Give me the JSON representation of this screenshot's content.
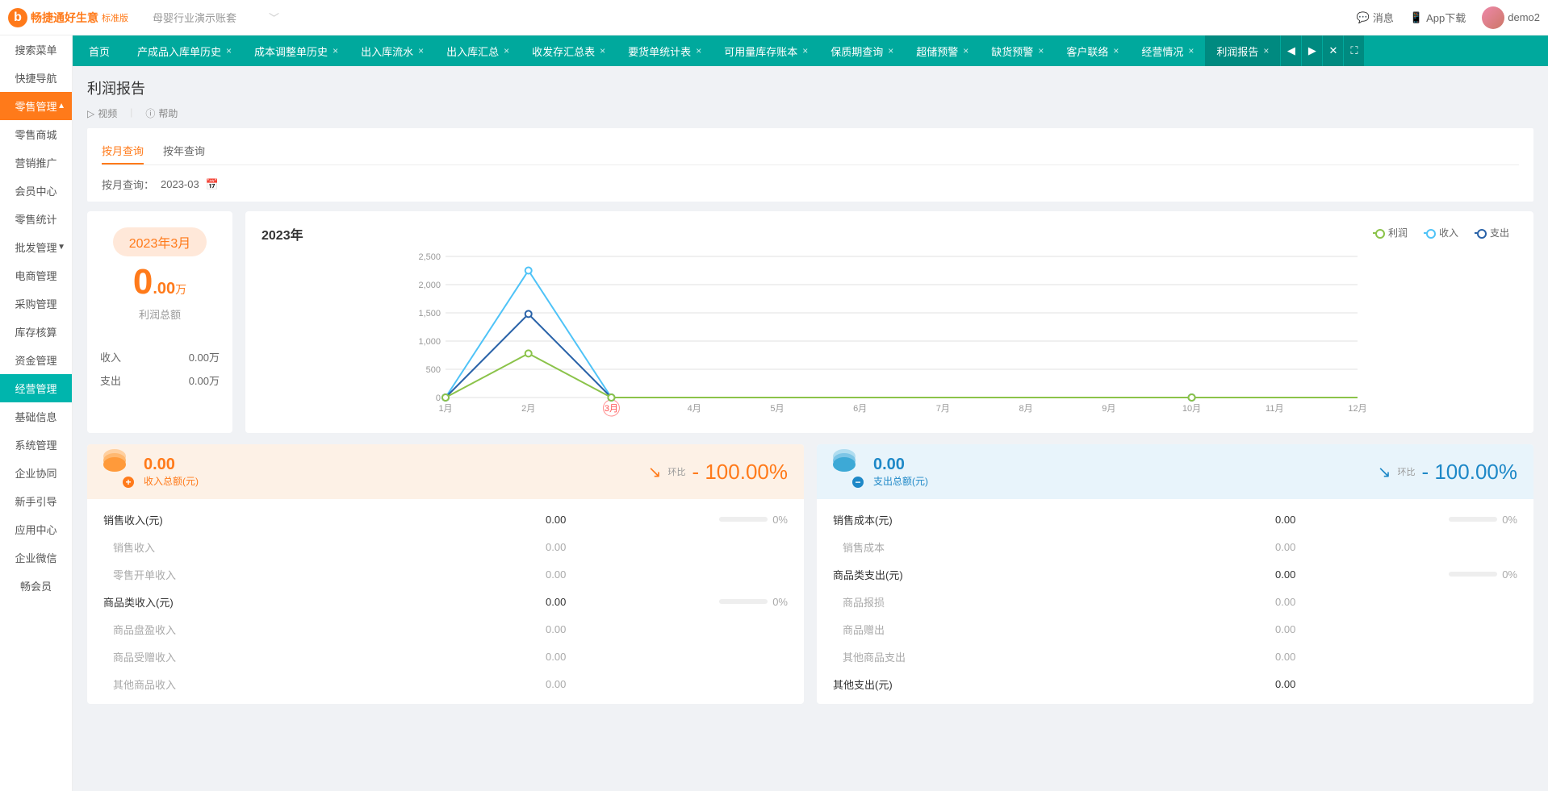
{
  "top": {
    "brand": "畅捷通好生意",
    "edition": "标准版",
    "account_selector": "母婴行业演示账套",
    "msg": "消息",
    "app": "App下载",
    "user": "demo2"
  },
  "sidebar": {
    "items": [
      {
        "label": "搜索菜单"
      },
      {
        "label": "快捷导航"
      },
      {
        "label": "零售管理",
        "active": true,
        "arrow": "▲"
      },
      {
        "label": "零售商城"
      },
      {
        "label": "营销推广"
      },
      {
        "label": "会员中心"
      },
      {
        "label": "零售统计"
      },
      {
        "label": "批发管理",
        "arrow": "▼"
      },
      {
        "label": "电商管理"
      },
      {
        "label": "采购管理"
      },
      {
        "label": "库存核算"
      },
      {
        "label": "资金管理"
      },
      {
        "label": "经营管理",
        "active2": true
      },
      {
        "label": "基础信息"
      },
      {
        "label": "系统管理"
      },
      {
        "label": "企业协同"
      },
      {
        "label": "新手引导"
      },
      {
        "label": "应用中心"
      },
      {
        "label": "企业微信"
      },
      {
        "label": "畅会员"
      }
    ]
  },
  "tabs": {
    "home": "首页",
    "items": [
      "产成品入库单历史",
      "成本调整单历史",
      "出入库流水",
      "出入库汇总",
      "收发存汇总表",
      "要货单统计表",
      "可用量库存账本",
      "保质期查询",
      "超储预警",
      "缺货预警",
      "客户联络",
      "经营情况",
      "利润报告"
    ],
    "active_index": 12
  },
  "page": {
    "title": "利润报告",
    "video": "视频",
    "help": "帮助",
    "subtabs": {
      "month": "按月查询",
      "year": "按年查询"
    },
    "query_label": "按月查询：",
    "query_value": "2023-03"
  },
  "summary": {
    "period": "2023年3月",
    "big_int": "0",
    "big_dec": ".00",
    "big_unit": "万",
    "sub": "利润总额",
    "income_label": "收入",
    "income_value": "0.00万",
    "expense_label": "支出",
    "expense_value": "0.00万"
  },
  "chart": {
    "title": "2023年",
    "legend": {
      "profit": "利润",
      "income": "收入",
      "expense": "支出"
    },
    "colors": {
      "profit": "#8bc34a",
      "income": "#4fc3f7",
      "expense": "#2962a8"
    },
    "grid_color": "#e0e0e0",
    "background": "#ffffff",
    "x_labels": [
      "1月",
      "2月",
      "3月",
      "4月",
      "5月",
      "6月",
      "7月",
      "8月",
      "9月",
      "10月",
      "11月",
      "12月"
    ],
    "highlight_x_index": 2,
    "y_ticks": [
      0,
      500,
      1000,
      1500,
      2000,
      2500
    ],
    "ylim": [
      0,
      2500
    ],
    "series": {
      "profit": [
        0,
        780,
        0,
        0,
        0,
        0,
        0,
        0,
        0,
        0,
        0,
        0
      ],
      "income": [
        0,
        2250,
        0,
        0,
        0,
        0,
        0,
        0,
        0,
        0,
        0,
        0
      ],
      "expense": [
        0,
        1480,
        0,
        0,
        0,
        0,
        0,
        0,
        0,
        0,
        0,
        0
      ]
    }
  },
  "income_panel": {
    "amount": "0.00",
    "label": "收入总额(元)",
    "hb": "环比",
    "pct": "- 100.00%",
    "colors": {
      "bg": "#fdf1e6",
      "text": "#ff7a1a"
    },
    "rows": [
      {
        "name": "销售收入(元)",
        "val": "0.00",
        "pct": "0%",
        "bar": true
      },
      {
        "name": "销售收入",
        "val": "0.00",
        "sub": true
      },
      {
        "name": "零售开单收入",
        "val": "0.00",
        "sub": true
      },
      {
        "name": "商品类收入(元)",
        "val": "0.00",
        "pct": "0%",
        "bar": true
      },
      {
        "name": "商品盘盈收入",
        "val": "0.00",
        "sub": true
      },
      {
        "name": "商品受赠收入",
        "val": "0.00",
        "sub": true
      },
      {
        "name": "其他商品收入",
        "val": "0.00",
        "sub": true
      }
    ]
  },
  "expense_panel": {
    "amount": "0.00",
    "label": "支出总额(元)",
    "hb": "环比",
    "pct": "- 100.00%",
    "colors": {
      "bg": "#e8f4fb",
      "text": "#1e88c7"
    },
    "rows": [
      {
        "name": "销售成本(元)",
        "val": "0.00",
        "pct": "0%",
        "bar": true
      },
      {
        "name": "销售成本",
        "val": "0.00",
        "sub": true
      },
      {
        "name": "商品类支出(元)",
        "val": "0.00",
        "pct": "0%",
        "bar": true
      },
      {
        "name": "商品报损",
        "val": "0.00",
        "sub": true
      },
      {
        "name": "商品赠出",
        "val": "0.00",
        "sub": true
      },
      {
        "name": "其他商品支出",
        "val": "0.00",
        "sub": true
      },
      {
        "name": "其他支出(元)",
        "val": "0.00",
        "sub": false
      }
    ]
  }
}
